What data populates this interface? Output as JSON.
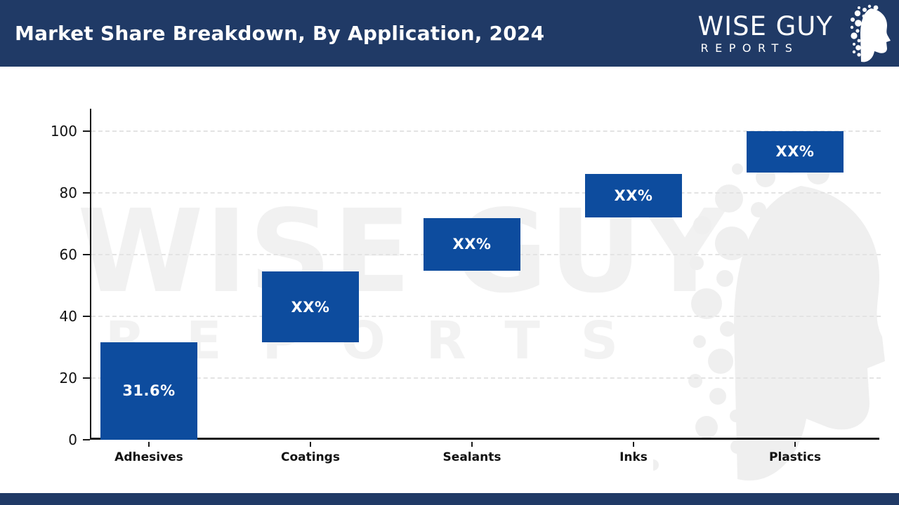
{
  "header": {
    "title": "Market Share Breakdown, By Application, 2024",
    "logo": {
      "brand": "WISE GUY",
      "sub": "REPORTS",
      "head_icon": "dotted-head-profile-icon"
    }
  },
  "watermark": {
    "line1": "WISE GUY",
    "line2": "REPORTS",
    "head_icon": "dotted-head-profile-watermark"
  },
  "colors": {
    "header_bg": "#203a66",
    "footer_bg": "#203a66",
    "bar": "#0d4c9e",
    "bar_label": "#ffffff",
    "axis": "#1a1a1a",
    "grid": "#e3e3e3",
    "watermark": "#f1f1f1"
  },
  "chart_data": {
    "type": "bar",
    "subtype": "waterfall",
    "title": "Market Share Breakdown, By Application, 2024",
    "xlabel": "",
    "ylabel": "",
    "categories": [
      "Adhesives",
      "Coatings",
      "Sealants",
      "Inks",
      "Plastics"
    ],
    "segments": [
      {
        "category": "Adhesives",
        "start": 0,
        "end": 31.6,
        "label": "31.6%"
      },
      {
        "category": "Coatings",
        "start": 31.6,
        "end": 54.5,
        "label": "XX%"
      },
      {
        "category": "Sealants",
        "start": 54.7,
        "end": 71.9,
        "label": "XX%"
      },
      {
        "category": "Inks",
        "start": 72.1,
        "end": 86.2,
        "label": "XX%"
      },
      {
        "category": "Plastics",
        "start": 86.6,
        "end": 100.0,
        "label": "XX%"
      }
    ],
    "ylim": [
      0,
      100
    ],
    "yticks": [
      0,
      20,
      40,
      60,
      80,
      100
    ],
    "grid": "horizontal-dashed",
    "legend": "none"
  }
}
